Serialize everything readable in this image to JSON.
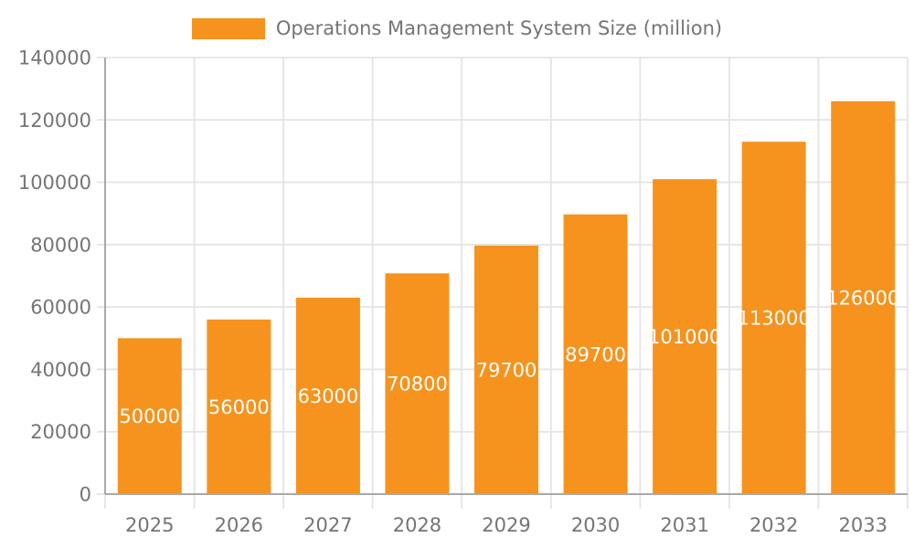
{
  "legend": {
    "label": "Operations Management System Size (million)"
  },
  "chart_data": {
    "type": "bar",
    "title": "Operations Management System Size (million)",
    "series_name": "Operations Management System Size (million)",
    "categories": [
      "2025",
      "2026",
      "2027",
      "2028",
      "2029",
      "2030",
      "2031",
      "2032",
      "2033"
    ],
    "values": [
      50000,
      56000,
      63000,
      70800,
      79700,
      89700,
      101000,
      113000,
      126000
    ],
    "xlabel": "",
    "ylabel": "",
    "ylim": [
      0,
      140000
    ],
    "ytick_step": 20000,
    "yticks": [
      0,
      20000,
      40000,
      60000,
      80000,
      100000,
      120000,
      140000
    ],
    "grid": true,
    "legend_position": "top",
    "value_labels_position": "inside-center",
    "colors": {
      "bar": "#f6931e",
      "bar_label": "#ffffff",
      "axis_text": "#757575",
      "grid": "#e4e4e4",
      "axis_line": "#a9a9a9",
      "background": "#ffffff"
    }
  }
}
